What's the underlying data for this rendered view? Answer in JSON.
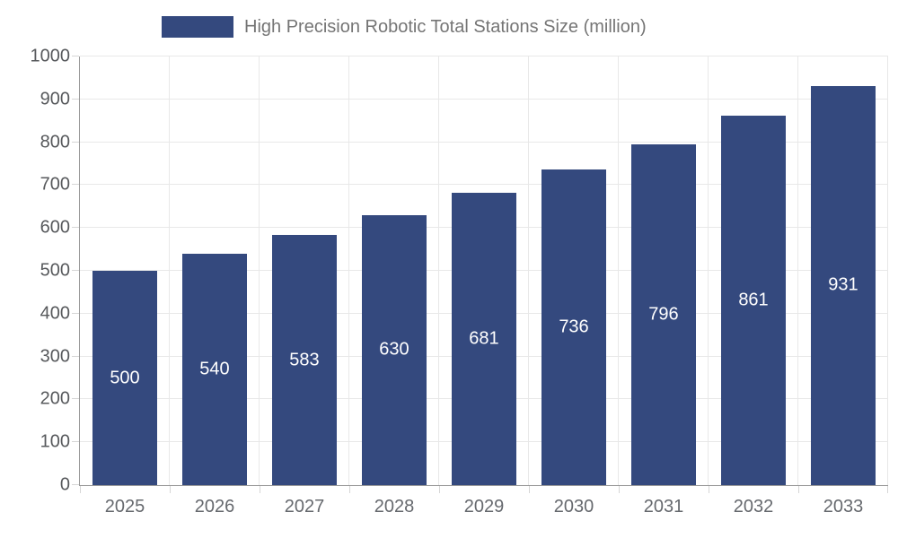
{
  "legend": {
    "label": "High Precision Robotic Total Stations Size (million)"
  },
  "colors": {
    "bar": "#34497e",
    "axis_line": "#999999",
    "grid_line": "#e8e8e8",
    "tick_mark": "#d6d6d6",
    "y_tick_label": "#57595c",
    "x_tick_label": "#66696e",
    "value_label": "#ffffff",
    "legend_text": "#757575",
    "background": "#ffffff"
  },
  "chart_data": {
    "type": "bar",
    "title": "High Precision Robotic Total Stations Size (million)",
    "categories": [
      "2025",
      "2026",
      "2027",
      "2028",
      "2029",
      "2030",
      "2031",
      "2032",
      "2033"
    ],
    "values": [
      500,
      540,
      583,
      630,
      681,
      736,
      796,
      861,
      931
    ],
    "xlabel": "",
    "ylabel": "",
    "ylim": [
      0,
      1000
    ],
    "yticks": [
      0,
      100,
      200,
      300,
      400,
      500,
      600,
      700,
      800,
      900,
      1000
    ],
    "grid": true,
    "legend_position": "top",
    "value_labels": "inside-center"
  }
}
